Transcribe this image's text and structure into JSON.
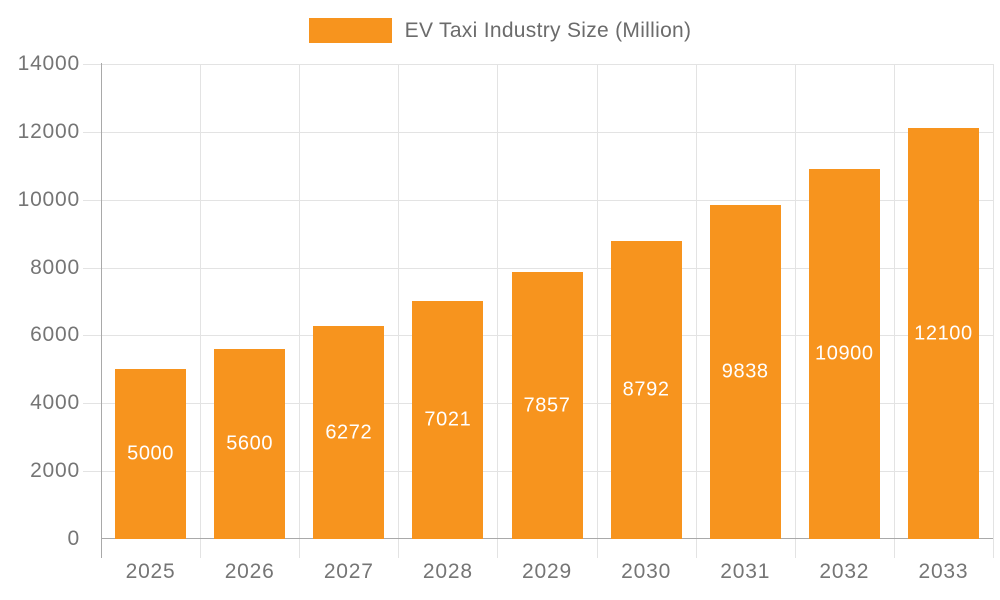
{
  "chart_data": {
    "type": "bar",
    "title": "",
    "legend": {
      "label": "EV Taxi Industry Size (Million)",
      "position": "top-center"
    },
    "categories": [
      "2025",
      "2026",
      "2027",
      "2028",
      "2029",
      "2030",
      "2031",
      "2032",
      "2033"
    ],
    "series": [
      {
        "name": "EV Taxi Industry Size (Million)",
        "values": [
          5000,
          5600,
          6272,
          7021,
          7857,
          8792,
          9838,
          10900,
          12100
        ]
      }
    ],
    "xlabel": "",
    "ylabel": "",
    "ylim": [
      0,
      14000
    ],
    "ytick_step": 2000,
    "ytick_labels": [
      "0",
      "2000",
      "4000",
      "6000",
      "8000",
      "10000",
      "12000",
      "14000"
    ],
    "grid": true,
    "data_labels": {
      "position": "inside-center",
      "color": "#ffffff"
    }
  },
  "colors": {
    "bar": "#F7941E",
    "axis_line": "#a9a9a9",
    "grid_line": "#e3e3e3",
    "tick_text": "#757575",
    "legend_text": "#6b6b6b",
    "background": "#ffffff"
  }
}
